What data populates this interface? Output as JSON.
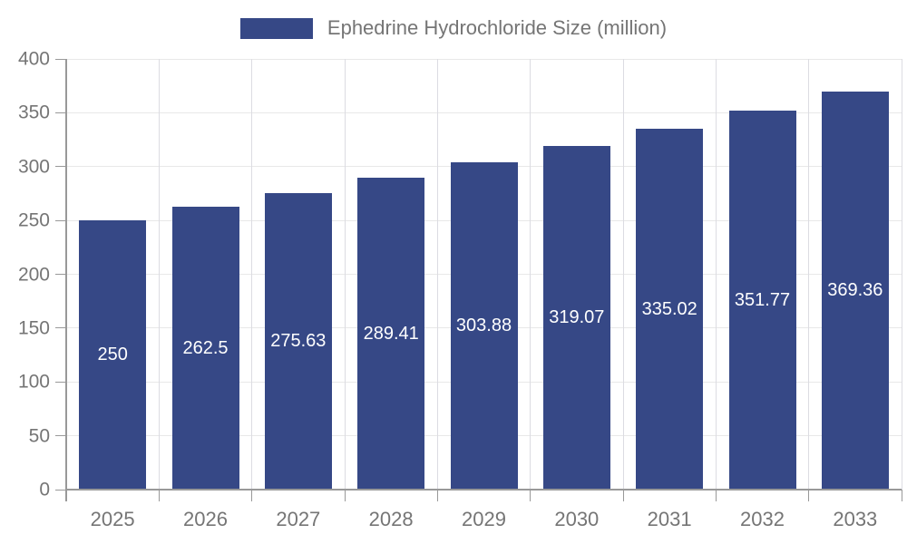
{
  "chart_data": {
    "type": "bar",
    "title": "Ephedrine Hydrochloride Size (million)",
    "categories": [
      "2025",
      "2026",
      "2027",
      "2028",
      "2029",
      "2030",
      "2031",
      "2032",
      "2033"
    ],
    "values": [
      250,
      262.5,
      275.63,
      289.41,
      303.88,
      319.07,
      335.02,
      351.77,
      369.36
    ],
    "value_labels": [
      "250",
      "262.5",
      "275.63",
      "289.41",
      "303.88",
      "319.07",
      "335.02",
      "351.77",
      "369.36"
    ],
    "xlabel": "",
    "ylabel": "",
    "ylim": [
      0,
      400
    ],
    "yticks": [
      0,
      50,
      100,
      150,
      200,
      250,
      300,
      350,
      400
    ],
    "ytick_labels": [
      "0",
      "50",
      "100",
      "150",
      "200",
      "250",
      "300",
      "350",
      "400"
    ],
    "grid": true,
    "legend_position": "top-center",
    "colors": {
      "bar": "#364886",
      "bar_label": "#ffffff",
      "axis": "#999999",
      "grid_h": "#e8e8e8",
      "grid_v": "#dcdce2",
      "text": "#757575"
    }
  }
}
